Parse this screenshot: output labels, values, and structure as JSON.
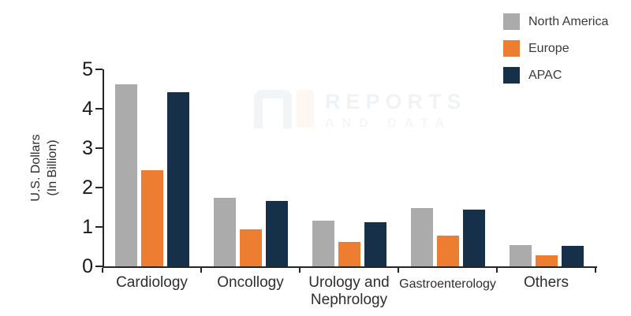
{
  "chart_data": {
    "type": "bar",
    "title": "",
    "categories": [
      "Cardiology",
      "Oncollogy",
      "Urology and Nephrology",
      "Gastroenterology",
      "Others"
    ],
    "series": [
      {
        "name": "North America",
        "color": "#ababab",
        "values": [
          4.62,
          1.75,
          1.17,
          1.48,
          0.55
        ]
      },
      {
        "name": "Europe",
        "color": "#ed7d31",
        "values": [
          2.45,
          0.95,
          0.63,
          0.78,
          0.28
        ]
      },
      {
        "name": "APAC",
        "color": "#17304a",
        "values": [
          4.42,
          1.67,
          1.12,
          1.44,
          0.52
        ]
      }
    ],
    "xlabel": "",
    "ylabel": "U.S. Dollars (In Billion)",
    "ylabel_lines": [
      "U.S. Dollars",
      "(In Billion)"
    ],
    "ylim": [
      0,
      5
    ],
    "yticks": [
      0,
      1,
      2,
      3,
      4,
      5
    ],
    "grid": false,
    "legend_position": "top-right",
    "axis_color": "#262626"
  },
  "watermark": {
    "line1": "REPORTS",
    "line2": "AND DATA"
  }
}
